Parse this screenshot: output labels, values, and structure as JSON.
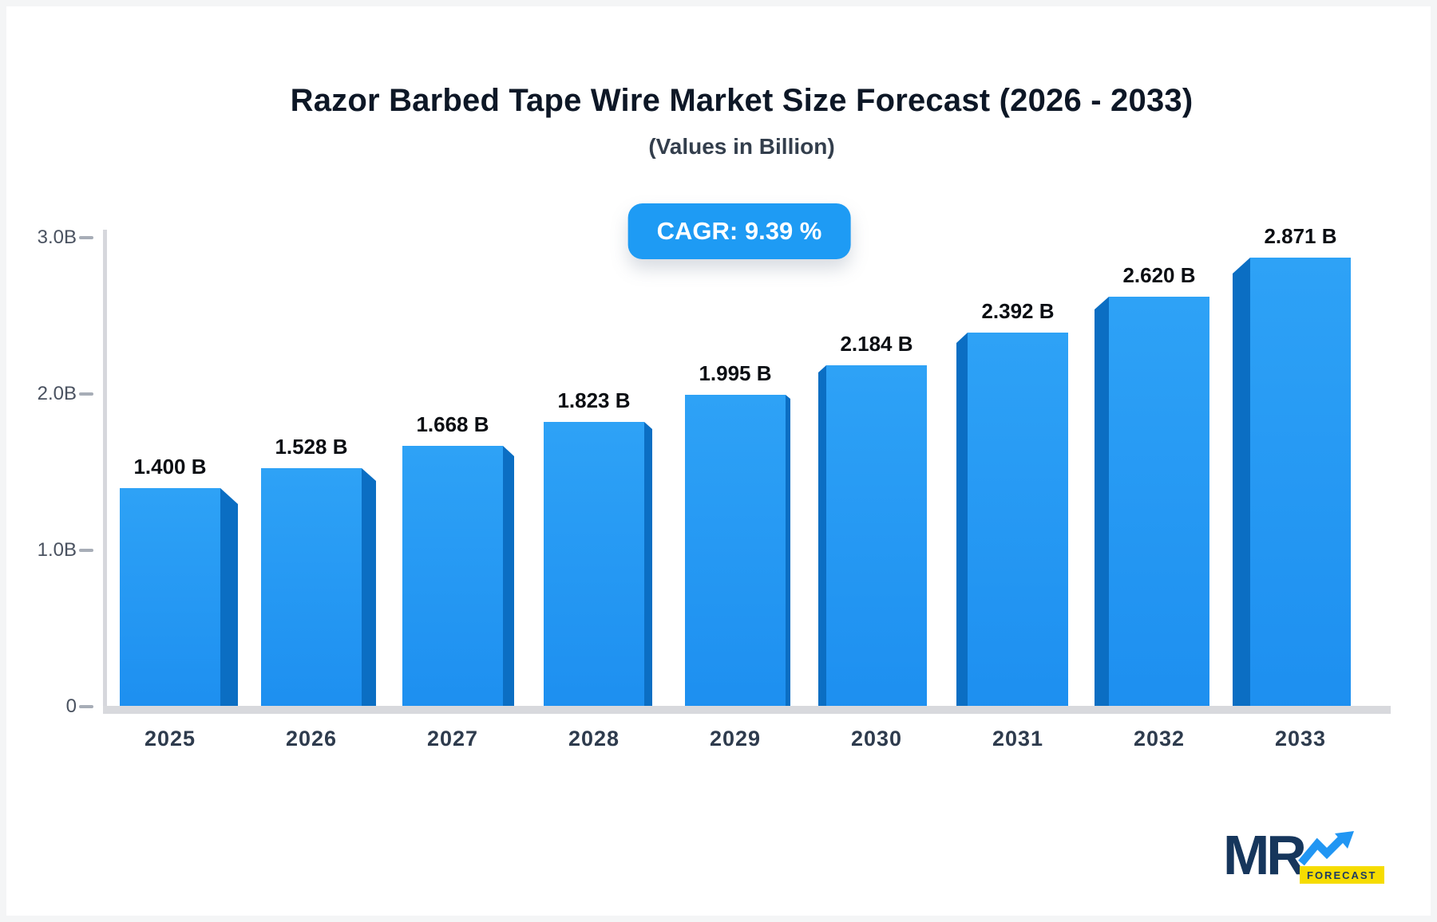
{
  "header": {
    "title": "Razor Barbed Tape Wire Market Size Forecast (2026 - 2033)",
    "subtitle": "(Values in Billion)"
  },
  "badge": {
    "label": "CAGR: 9.39 %"
  },
  "chart_data": {
    "type": "bar",
    "title": "Razor Barbed Tape Wire Market Size Forecast (2026 - 2033)",
    "subtitle": "(Values in Billion)",
    "categories": [
      "2025",
      "2026",
      "2027",
      "2028",
      "2029",
      "2030",
      "2031",
      "2032",
      "2033"
    ],
    "values": [
      1.4,
      1.528,
      1.668,
      1.823,
      1.995,
      2.184,
      2.392,
      2.62,
      2.871
    ],
    "value_labels": [
      "1.400 B",
      "1.528 B",
      "1.668 B",
      "1.823 B",
      "1.995 B",
      "2.184 B",
      "2.392 B",
      "2.620 B",
      "2.871 B"
    ],
    "xlabel": "",
    "ylabel": "",
    "ylim": [
      0,
      3.0
    ],
    "ytick_values": [
      0,
      1.0,
      2.0,
      3.0
    ],
    "ytick_labels": [
      "0",
      "1.0B",
      "2.0B",
      "3.0B"
    ],
    "grid": false,
    "legend": false,
    "cagr": "9.39 %",
    "style": "3d-bars",
    "bar_color_top": "#2ea2f6",
    "bar_color_bottom": "#1d8ff0",
    "bar_side_color": "#0b6ec3",
    "badge_color": "#1e9bf4"
  },
  "logo": {
    "text": "MR",
    "sub": "FORECAST",
    "navy": "#16365c",
    "yellow": "#f6dc00",
    "arrow_blue": "#2196f3"
  }
}
